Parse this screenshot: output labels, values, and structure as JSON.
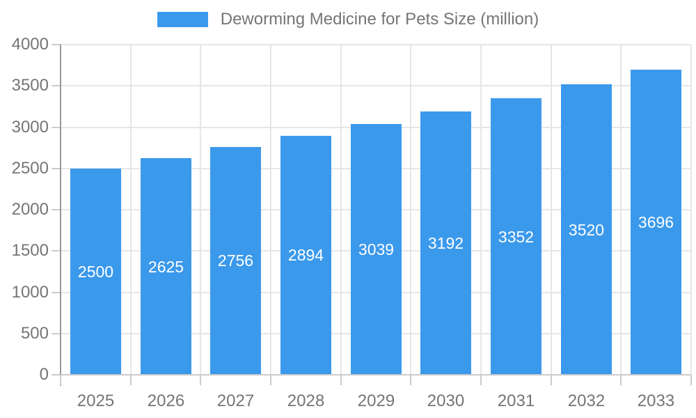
{
  "legend": {
    "label": "Deworming Medicine for Pets Size (million)",
    "swatch_color": "#3b99ec"
  },
  "chart_data": {
    "type": "bar",
    "title": "Deworming Medicine for Pets Size (million)",
    "categories": [
      "2025",
      "2026",
      "2027",
      "2028",
      "2029",
      "2030",
      "2031",
      "2032",
      "2033"
    ],
    "values": [
      2500,
      2625,
      2756,
      2894,
      3039,
      3192,
      3352,
      3520,
      3696
    ],
    "bar_labels_shown": true,
    "xlabel": "",
    "ylabel": "",
    "ylim": [
      0,
      4000
    ],
    "yticks": [
      0,
      500,
      1000,
      1500,
      2000,
      2500,
      3000,
      3500,
      4000
    ],
    "grid": true,
    "legend_position": "top",
    "colors": {
      "bar": "#3b99ec",
      "bar_label": "#ffffff",
      "axis_text": "#757575",
      "gridline": "#e6e6e6",
      "y_axis_line": "#999999",
      "x_axis_line": "#cccccc",
      "tick": "#cccccc"
    }
  }
}
